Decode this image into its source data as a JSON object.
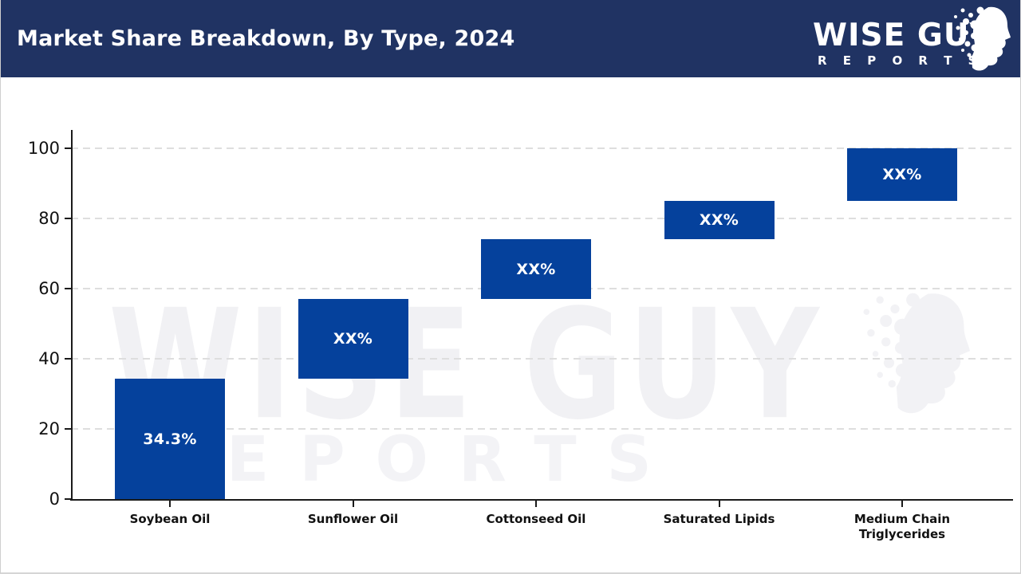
{
  "header": {
    "title": "Market Share Breakdown, By Type, 2024",
    "logo": {
      "line1": "WISE GUY",
      "line2": "R E P O R T S"
    }
  },
  "watermark": {
    "line1": "WISE GUY",
    "line2": "REPORTS"
  },
  "colors": {
    "header_bg": "#203363",
    "bar": "#05419c",
    "bar_label": "#ffffff",
    "grid": "#dedede",
    "axis": "#1a1a1a",
    "watermark": "#f1f1f4"
  },
  "chart_data": {
    "type": "bar",
    "subtype": "waterfall",
    "title": "Market Share Breakdown, By Type, 2024",
    "categories": [
      "Soybean Oil",
      "Sunflower Oil",
      "Cottonseed Oil",
      "Saturated Lipids",
      "Medium Chain Triglycerides"
    ],
    "segments": [
      {
        "category": "Soybean Oil",
        "start": 0,
        "end": 34.3,
        "label": "34.3%"
      },
      {
        "category": "Sunflower Oil",
        "start": 34.3,
        "end": 57,
        "label": "XX%"
      },
      {
        "category": "Cottonseed Oil",
        "start": 57,
        "end": 74,
        "label": "XX%"
      },
      {
        "category": "Saturated Lipids",
        "start": 74,
        "end": 85,
        "label": "XX%"
      },
      {
        "category": "Medium Chain Triglycerides",
        "start": 85,
        "end": 100,
        "label": "XX%"
      }
    ],
    "yticks": [
      0,
      20,
      40,
      60,
      80,
      100
    ],
    "ylim": [
      0,
      106
    ],
    "xlabel": "",
    "ylabel": "",
    "grid": "horizontal-dashed",
    "legend": "none",
    "bar_color": "#05419c"
  }
}
